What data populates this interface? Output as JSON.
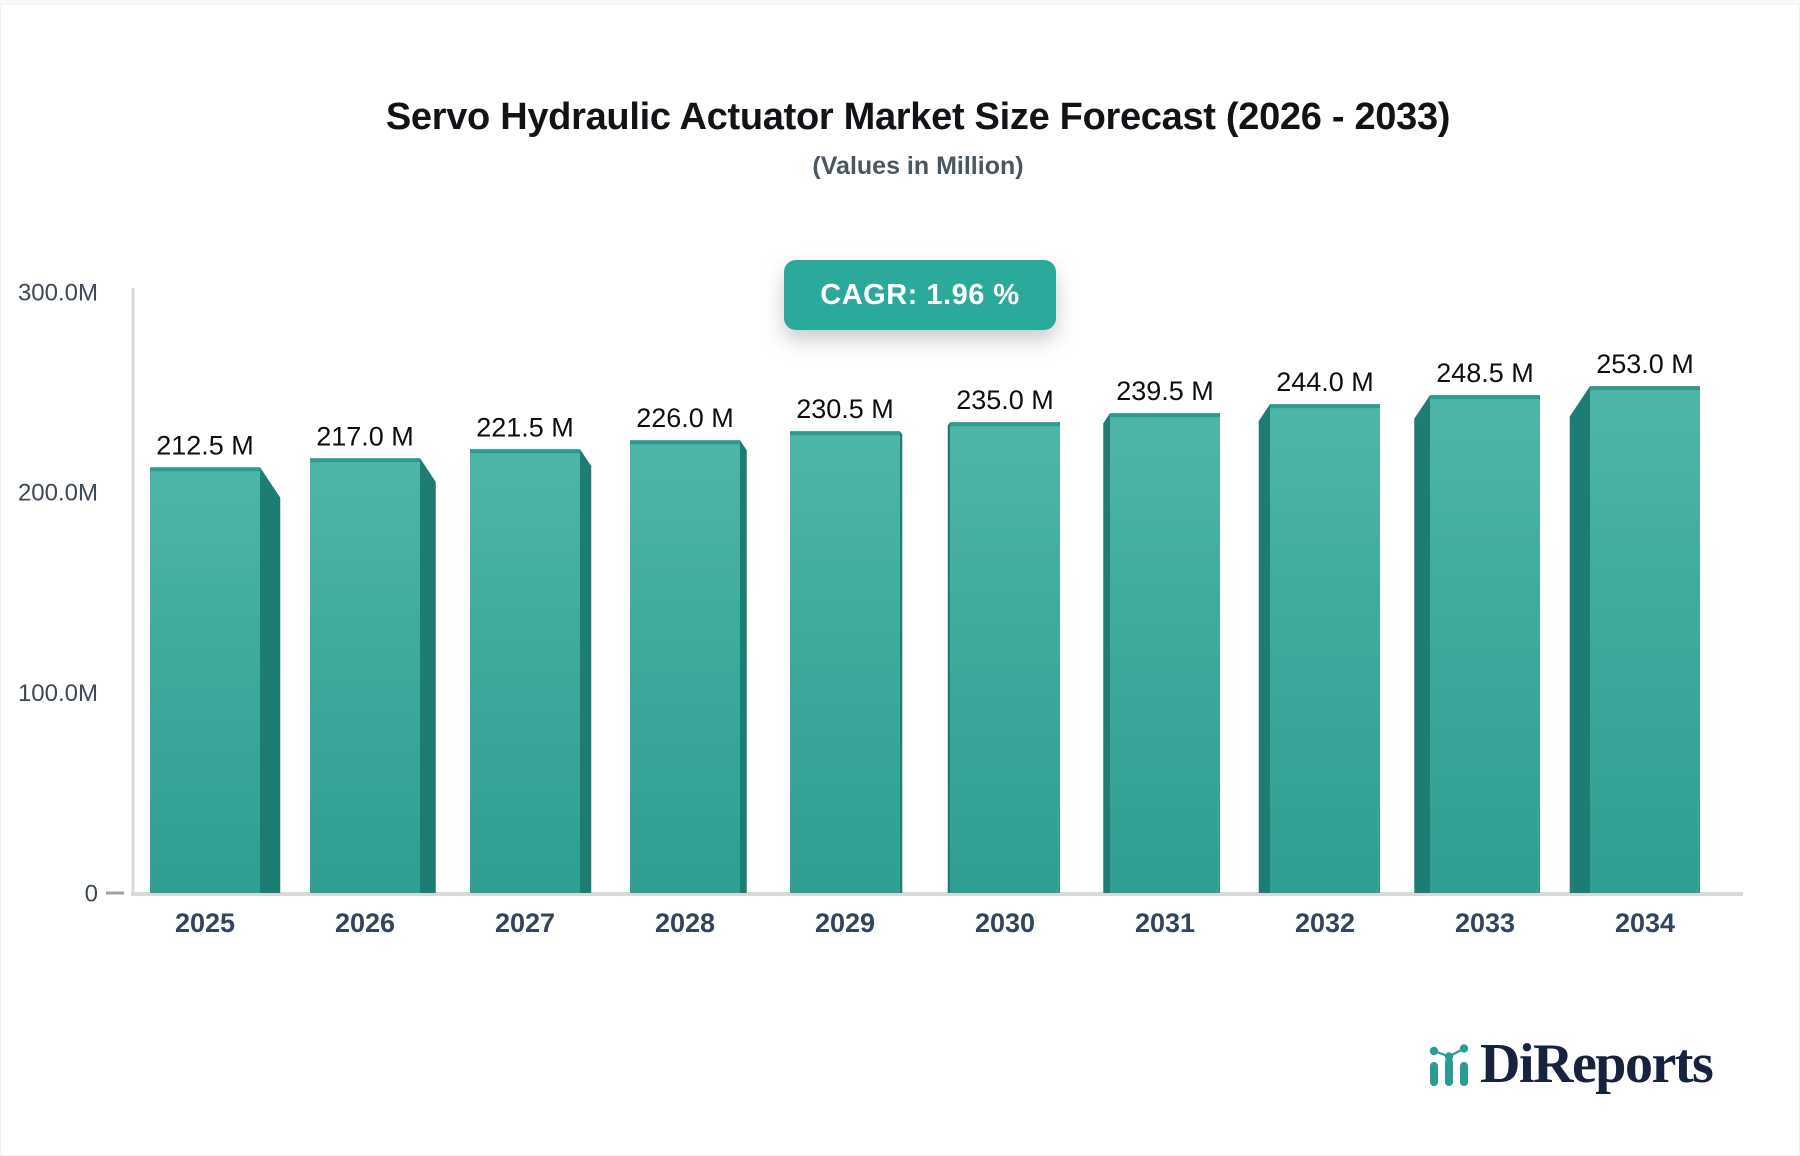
{
  "header": {
    "title": "Servo Hydraulic Actuator Market Size Forecast (2026 - 2033)",
    "subtitle": "(Values in Million)"
  },
  "badge": {
    "label": "CAGR: 1.96 %"
  },
  "chart_data": {
    "type": "bar",
    "title": "Servo Hydraulic Actuator Market Size Forecast (2026 - 2033)",
    "subtitle": "(Values in Million)",
    "unit": "Million",
    "categories": [
      "2025",
      "2026",
      "2027",
      "2028",
      "2029",
      "2030",
      "2031",
      "2032",
      "2033",
      "2034"
    ],
    "values": [
      212.5,
      217.0,
      221.5,
      226.0,
      230.5,
      235.0,
      239.5,
      244.0,
      248.5,
      253.0
    ],
    "value_labels": [
      "212.5 M",
      "217.0 M",
      "221.5 M",
      "226.0 M",
      "230.5 M",
      "235.0 M",
      "239.5 M",
      "244.0 M",
      "248.5 M",
      "253.0 M"
    ],
    "xlabel": "",
    "ylabel": "",
    "ylim": [
      0,
      300
    ],
    "y_ticks": [
      {
        "value": 300,
        "label": "300.0M"
      },
      {
        "value": 200,
        "label": "200.0M"
      },
      {
        "value": 100,
        "label": "100.0M"
      },
      {
        "value": 0,
        "label": "0"
      }
    ],
    "grid": false,
    "legend": false,
    "bar_style": "3d-extruded-perspective-from-center"
  },
  "colors": {
    "bar_face_top": "#4eb6a7",
    "bar_face_mid": "#3aa89a",
    "bar_face_bottom": "#2e9f92",
    "bar_side": "#1e7d73",
    "bar_cap": "#2d9c8e",
    "badge_bg": "#2ba99b",
    "axis_line": "#d7d9dd",
    "zero_tick": "#9aa1a9",
    "y_label": "#3d4956",
    "x_label": "#33455e",
    "value_label": "#0d0e10",
    "logo_navy": "#17233e",
    "logo_teal": "#2a9d92"
  },
  "logo": {
    "text": "DiReports",
    "icon": "mini-bar-chart-icon"
  }
}
